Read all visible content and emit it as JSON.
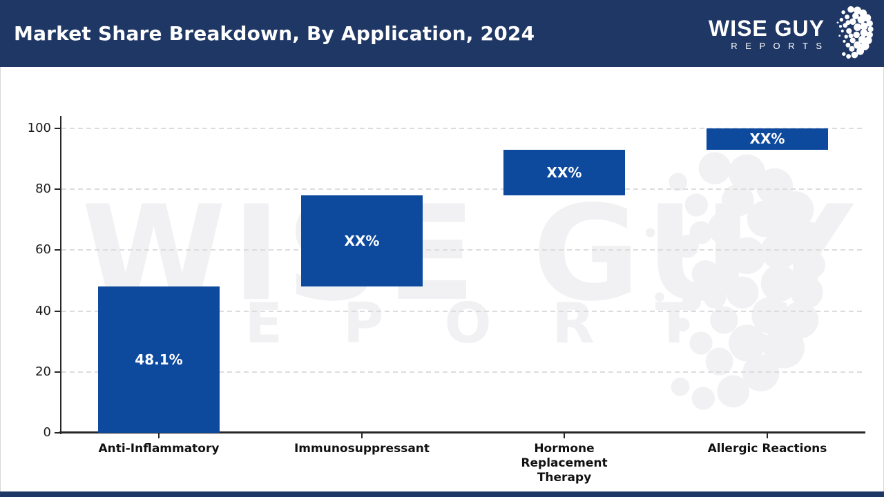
{
  "header": {
    "title": "Market Share Breakdown, By Application, 2024",
    "logo": {
      "wordmark": "WISE GUY",
      "subtext": "R E P O R T S",
      "face_icon": "dotted-face-profile"
    }
  },
  "watermark": {
    "wordmark": "WISE GUY",
    "subtext": "R E P O R T S"
  },
  "chart_data": {
    "type": "bar",
    "subtype": "waterfall",
    "title": "Market Share Breakdown, By Application, 2024",
    "categories": [
      "Anti-Inflammatory",
      "Immunosuppressant",
      "Hormone Replacement Therapy",
      "Allergic Reactions"
    ],
    "segments": [
      {
        "category": "Anti-Inflammatory",
        "start": 0,
        "end": 48.1,
        "label": "48.1%"
      },
      {
        "category": "Immunosuppressant",
        "start": 48.1,
        "end": 78,
        "label": "XX%"
      },
      {
        "category": "Hormone Replacement Therapy",
        "start": 78,
        "end": 93,
        "label": "XX%"
      },
      {
        "category": "Allergic Reactions",
        "start": 93,
        "end": 100,
        "label": "XX%"
      }
    ],
    "yticks": [
      0,
      20,
      40,
      60,
      80,
      100
    ],
    "ylim": [
      0,
      100
    ],
    "grid": "horizontal-dashed",
    "legend": "none",
    "colors": {
      "header_bg": "#1f3764",
      "bar": "#0d4a9e",
      "grid": "#dcdcdc",
      "axis": "#262626",
      "bar_label": "#ffffff",
      "watermark": "#f1f1f3"
    }
  }
}
